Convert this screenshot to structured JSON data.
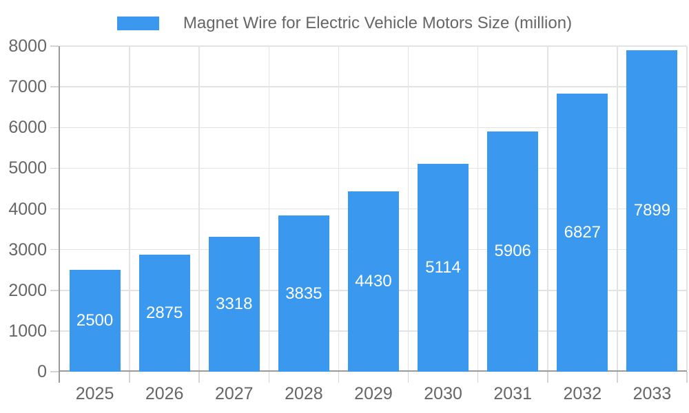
{
  "chart_data": {
    "type": "bar",
    "title": "Magnet Wire for Electric Vehicle Motors Size (million)",
    "legend": [
      "Magnet Wire for Electric Vehicle Motors Size (million)"
    ],
    "legend_position": "top",
    "categories": [
      "2025",
      "2026",
      "2027",
      "2028",
      "2029",
      "2030",
      "2031",
      "2032",
      "2033"
    ],
    "series": [
      {
        "name": "Magnet Wire for Electric Vehicle Motors Size (million)",
        "values": [
          2500,
          2875,
          3318,
          3835,
          4430,
          5114,
          5906,
          6827,
          7899
        ]
      }
    ],
    "xlabel": "",
    "ylabel": "",
    "ylim": [
      0,
      8000
    ],
    "ytick_step": 1000,
    "yticks": [
      0,
      1000,
      2000,
      3000,
      4000,
      5000,
      6000,
      7000,
      8000
    ],
    "grid": true,
    "bar_labels_shown": true,
    "bar_label_position": "inside-center"
  },
  "colors": {
    "bar": "#3A99EE",
    "bar_label": "#FFFFFF",
    "axis_line": "#9A9A9A",
    "gridline": "#E3E3E3",
    "tick": "#D4D4D4",
    "text": "#666666",
    "background": "#FFFFFF"
  }
}
